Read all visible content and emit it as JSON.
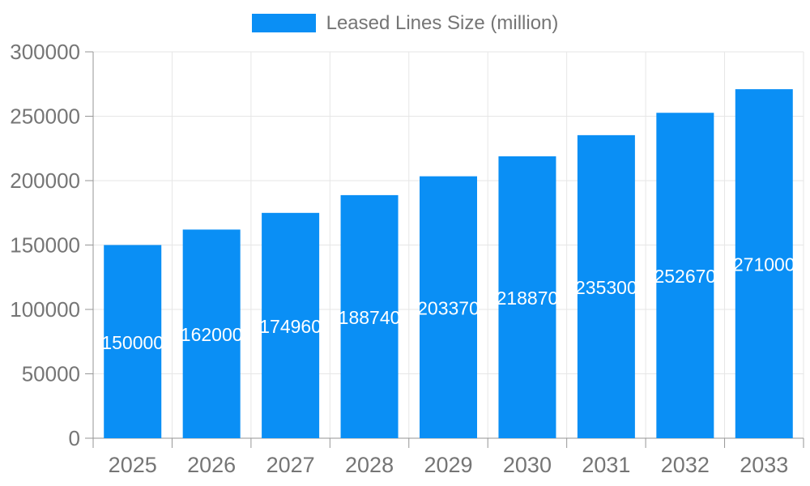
{
  "chart_data": {
    "type": "bar",
    "title": "",
    "legend_entries": [
      "Leased Lines Size (million)"
    ],
    "legend_position": "top",
    "categories": [
      "2025",
      "2026",
      "2027",
      "2028",
      "2029",
      "2030",
      "2031",
      "2032",
      "2033"
    ],
    "series": [
      {
        "name": "Leased Lines Size (million)",
        "values": [
          150000,
          162000,
          174960,
          188740,
          203370,
          218870,
          235300,
          252670,
          271000
        ]
      }
    ],
    "bar_value_labels": [
      "150000",
      "162000",
      "174960",
      "188740",
      "203370",
      "218870",
      "235300",
      "252670",
      "271000"
    ],
    "xlabel": "",
    "ylabel": "",
    "ylim": [
      0,
      300000
    ],
    "ytick_step": 50000,
    "ytick_labels": [
      "0",
      "50000",
      "100000",
      "150000",
      "200000",
      "250000",
      "300000"
    ],
    "grid": true,
    "colors": {
      "bar": "#0A8FF5",
      "axis_text": "#757575",
      "grid_line": "#E6E6E6",
      "axis_line": "#969696",
      "value_label": "#FFFFFF",
      "background": "#FFFFFF"
    }
  }
}
